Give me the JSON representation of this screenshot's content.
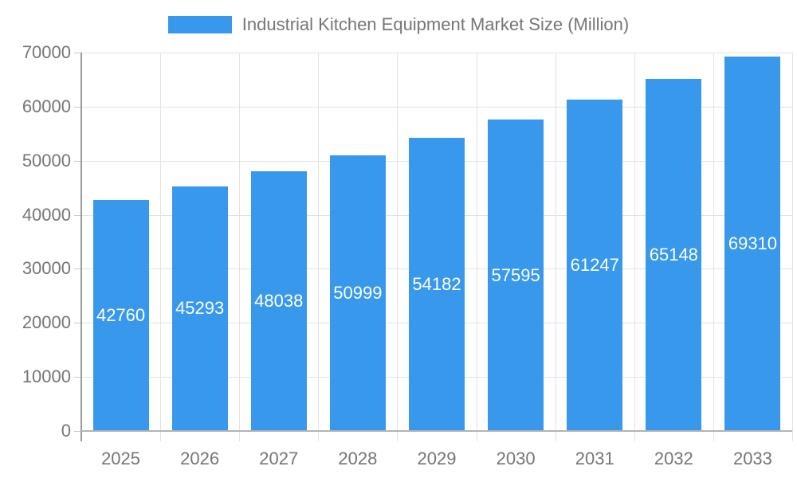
{
  "chart_data": {
    "type": "bar",
    "title": "Industrial Kitchen Equipment Market Size (Million)",
    "legend_position": "top",
    "categories": [
      "2025",
      "2026",
      "2027",
      "2028",
      "2029",
      "2030",
      "2031",
      "2032",
      "2033"
    ],
    "series": [
      {
        "name": "Industrial Kitchen Equipment Market Size (Million)",
        "values": [
          42760,
          45293,
          48038,
          50999,
          54182,
          57595,
          61247,
          65148,
          69310
        ]
      }
    ],
    "value_labels": [
      "42760",
      "45293",
      "48038",
      "50999",
      "54182",
      "57595",
      "61247",
      "65148",
      "69310"
    ],
    "value_label_position": "inside-center",
    "xlabel": "",
    "ylabel": "",
    "ylim": [
      0,
      70000
    ],
    "yticks": [
      0,
      10000,
      20000,
      30000,
      40000,
      50000,
      60000,
      70000
    ],
    "ytick_labels": [
      "0",
      "10000",
      "20000",
      "30000",
      "40000",
      "50000",
      "60000",
      "70000"
    ],
    "grid": {
      "horizontal": true,
      "vertical": true
    },
    "colors": {
      "bar": "#3898EC",
      "value_label_text": "#ffffff",
      "axis_text": "#757575",
      "gridline": "#e3e3e3",
      "baseline": "#b3b3b3",
      "axis_line": "#999999",
      "tick": "#cccccc",
      "background": "#ffffff"
    }
  }
}
